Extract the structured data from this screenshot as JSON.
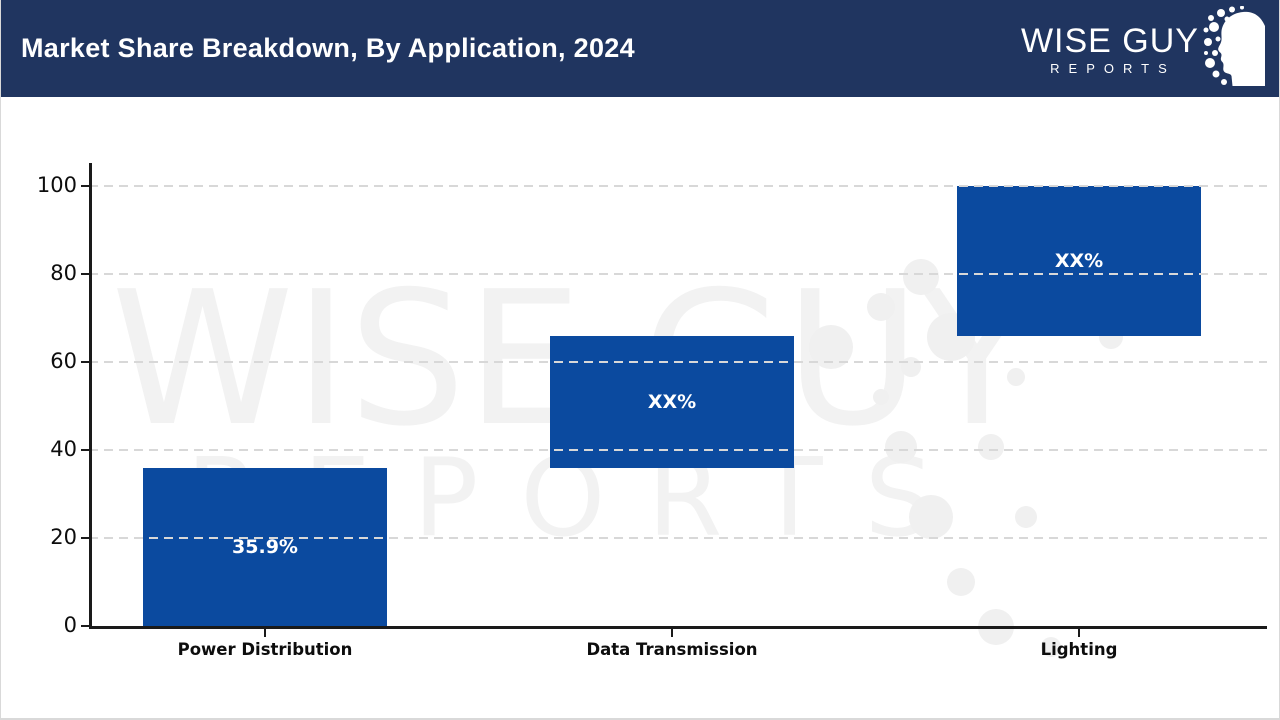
{
  "header": {
    "title": "Market Share Breakdown, By Application, 2024",
    "logo": {
      "line1": "WISE GUY",
      "line2": "REPORTS"
    }
  },
  "watermark": {
    "line1": "WISE GUY",
    "line2": "REPORTS"
  },
  "colors": {
    "header_bg": "#203560",
    "bar_blue": "#0b4a9f",
    "grid_gray": "#d8d8d8",
    "axis_black": "#1a1a1a",
    "watermark_gray": "#f2f2f2",
    "bar_label_white": "#ffffff"
  },
  "chart_data": {
    "type": "bar",
    "subtype": "floating-segment-waterfall",
    "title": "Market Share Breakdown, By Application, 2024",
    "categories": [
      "Power Distribution",
      "Data Transmission",
      "Lighting"
    ],
    "segments": [
      {
        "category": "Power Distribution",
        "start": 0,
        "end": 35.9,
        "label": "35.9%"
      },
      {
        "category": "Data Transmission",
        "start": 35.9,
        "end": 65.9,
        "label": "XX%"
      },
      {
        "category": "Lighting",
        "start": 65.9,
        "end": 100,
        "label": "XX%"
      }
    ],
    "ylim": [
      0,
      100
    ],
    "yticks": [
      0,
      20,
      40,
      60,
      80,
      100
    ],
    "xlabel": "",
    "ylabel": "",
    "grid": {
      "horizontal": true,
      "style": "dashed",
      "drawn_over_bars": true
    },
    "legend": "none",
    "bar_color": "#0b4a9f",
    "bar_label_color": "#ffffff"
  }
}
